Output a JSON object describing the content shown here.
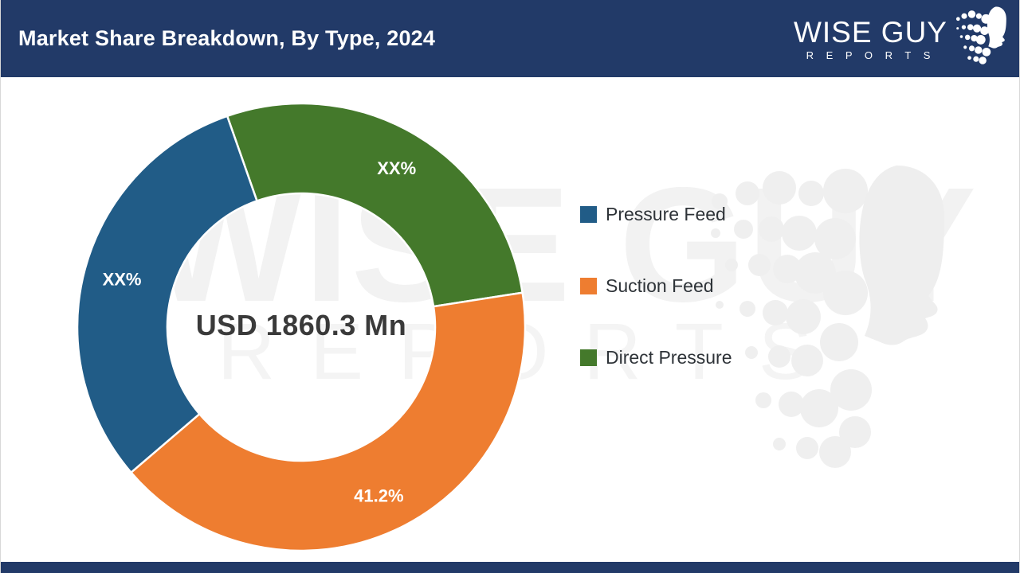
{
  "header": {
    "title": "Market Share Breakdown, By Type, 2024",
    "logo": {
      "line1": "WISE GUY",
      "line2": "R E P O R T S"
    }
  },
  "watermark": {
    "line1": "WISE GUY",
    "line2": "REPORTS"
  },
  "chart_data": {
    "type": "donut",
    "title": "Market Share Breakdown, By Type, 2024",
    "center_label": "USD 1860.3 Mn",
    "start_angle_deg": -19.3,
    "outer_radius_px": 281,
    "inner_radius_px": 168,
    "segments": [
      {
        "name": "Direct Pressure",
        "label": "XX%",
        "value_pct": 27.9,
        "color": "#44792B"
      },
      {
        "name": "Suction Feed",
        "label": "41.2%",
        "value_pct": 41.2,
        "color": "#EE7D30"
      },
      {
        "name": "Pressure Feed",
        "label": "XX%",
        "value_pct": 30.9,
        "color": "#215C87"
      }
    ],
    "legend": [
      {
        "label": "Pressure Feed",
        "color": "#215C87"
      },
      {
        "label": "Suction Feed",
        "color": "#EE7D30"
      },
      {
        "label": "Direct Pressure",
        "color": "#44792B"
      }
    ],
    "legend_position": "right"
  },
  "colors": {
    "header_bg": "#223A68",
    "footer_bg": "#223A68",
    "slice_gap": "#FFFFFF",
    "center_text": "#3A3A3A",
    "watermark": "#F2F2F2"
  }
}
